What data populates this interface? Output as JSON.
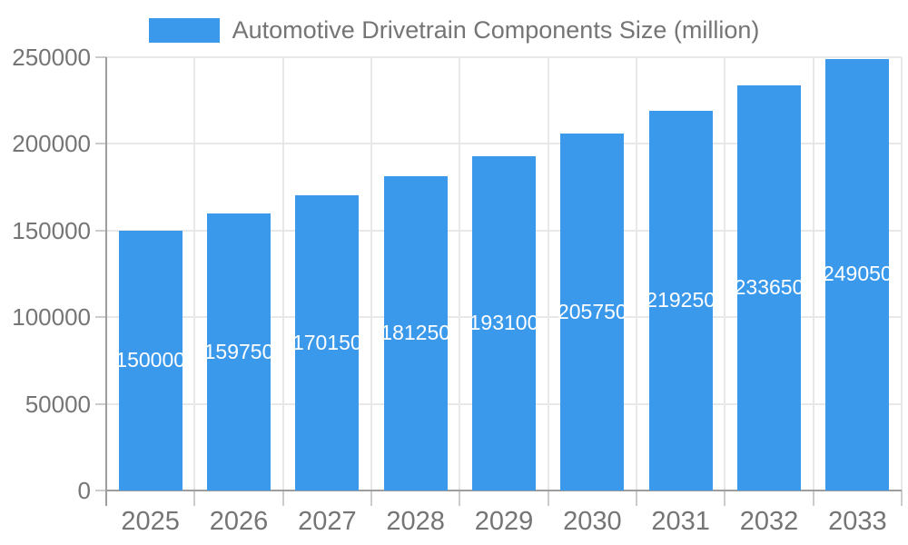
{
  "chart_data": {
    "type": "bar",
    "title": "",
    "legend": {
      "label": "Automotive Drivetrain Components Size (million)",
      "position": "top"
    },
    "categories": [
      "2025",
      "2026",
      "2027",
      "2028",
      "2029",
      "2030",
      "2031",
      "2032",
      "2033"
    ],
    "series": [
      {
        "name": "Automotive Drivetrain Components Size (million)",
        "values": [
          150000,
          159750,
          170150,
          181250,
          193100,
          205750,
          219250,
          233650,
          249050
        ]
      }
    ],
    "bar_value_labels": [
      "150000",
      "159750",
      "170150",
      "181250",
      "193100",
      "205750",
      "219250",
      "233650",
      "249050"
    ],
    "xlabel": "",
    "ylabel": "",
    "ylim": [
      0,
      250000
    ],
    "yticks": [
      0,
      50000,
      100000,
      150000,
      200000,
      250000
    ],
    "ytick_labels": [
      "0",
      "50000",
      "100000",
      "150000",
      "200000",
      "250000"
    ],
    "grid": true,
    "colors": {
      "bar": "#3b99ec",
      "grid": "#e8e8e8",
      "axis": "#9e9e9e",
      "tick": "#cccccc",
      "text": "#757575",
      "bar_label": "#ffffff",
      "background": "#ffffff"
    }
  }
}
